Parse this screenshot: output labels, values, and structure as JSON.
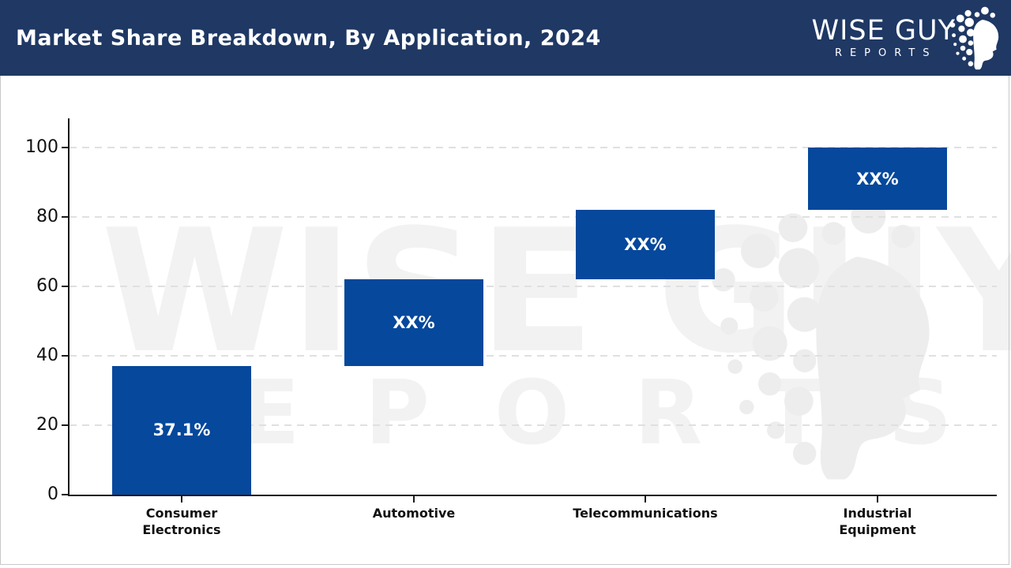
{
  "header": {
    "title": "Market Share Breakdown, By Application, 2024",
    "logo": {
      "wordmark": "WISE GUY",
      "sub": "REPORTS"
    }
  },
  "watermark": {
    "line1": "WISE GUY",
    "line2": "REPORTS"
  },
  "colors": {
    "header-bg": "#1f3864",
    "bar": "#05489c",
    "grid": "#e0e0e0",
    "axis": "#1a1a1a",
    "text": "#111111",
    "bar-label": "#ffffff",
    "watermark": "#f2f2f2",
    "frame": "#c8c8c8"
  },
  "chart_data": {
    "type": "bar",
    "variant": "stacked-percentage-waterfall",
    "title": "Market Share Breakdown, By Application, 2024",
    "categories": [
      "Consumer Electronics",
      "Automotive",
      "Telecommunications",
      "Industrial Equipment"
    ],
    "category_label_lines": [
      [
        "Consumer",
        "Electronics"
      ],
      [
        "Automotive"
      ],
      [
        "Telecommunications"
      ],
      [
        "Industrial",
        "Equipment"
      ]
    ],
    "segments": [
      {
        "category": "Consumer Electronics",
        "start": 0,
        "end": 37.1,
        "value": 37.1,
        "label": "37.1%"
      },
      {
        "category": "Automotive",
        "start": 37.1,
        "end": 62,
        "value": 24.9,
        "label": "XX%"
      },
      {
        "category": "Telecommunications",
        "start": 62,
        "end": 82,
        "value": 20,
        "label": "XX%"
      },
      {
        "category": "Industrial Equipment",
        "start": 82,
        "end": 100,
        "value": 18,
        "label": "XX%"
      }
    ],
    "ylim": [
      0,
      108
    ],
    "yticks": [
      0,
      20,
      40,
      60,
      80,
      100
    ],
    "xlabel": "",
    "ylabel": "",
    "grid": "horizontal-dashed",
    "legend": "none"
  }
}
